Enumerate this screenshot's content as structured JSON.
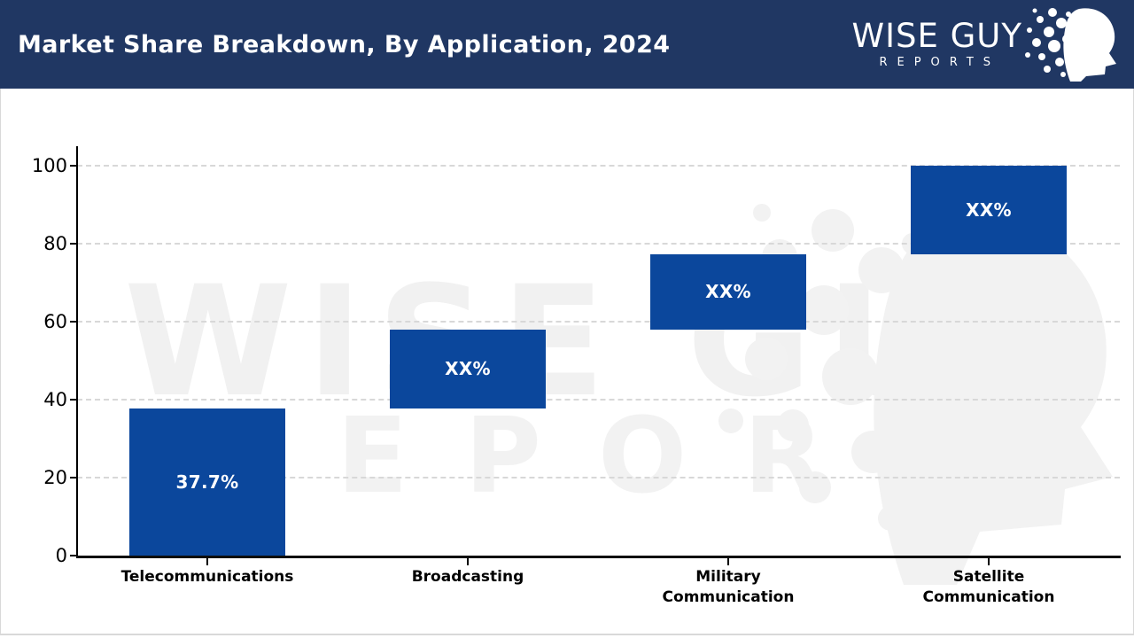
{
  "header": {
    "title": "Market Share Breakdown, By Application, 2024",
    "logo": {
      "line1": "WISE GUY",
      "line2": "REPORTS"
    }
  },
  "watermark": {
    "line1": "WISE GUY",
    "line2": "REPORTS"
  },
  "colors": {
    "header_bg": "#203763",
    "bar": "#0b479c",
    "grid": "#d8d8d8",
    "axis": "#000000",
    "bar_label": "#ffffff",
    "watermark": "#f1f1f1",
    "frame": "#d9d9d9",
    "title_text": "#ffffff"
  },
  "chart_data": {
    "type": "bar",
    "subtype": "waterfall",
    "title": "Market Share Breakdown, By Application, 2024",
    "xlabel": "",
    "ylabel": "",
    "ylim": [
      0,
      100
    ],
    "yticks": [
      0,
      20,
      40,
      60,
      80,
      100
    ],
    "grid": "horizontal-dashed",
    "legend": "none",
    "categories": [
      "Telecommunications",
      "Broadcasting",
      "Military\nCommunication",
      "Satellite\nCommunication"
    ],
    "segments": [
      {
        "category": "Telecommunications",
        "start": 0,
        "end": 37.7,
        "label": "37.7%"
      },
      {
        "category": "Broadcasting",
        "start": 37.7,
        "end": 58,
        "label": "XX%"
      },
      {
        "category": "Military Communication",
        "start": 58,
        "end": 77.3,
        "label": "XX%"
      },
      {
        "category": "Satellite Communication",
        "start": 77.3,
        "end": 100,
        "label": "XX%"
      }
    ]
  }
}
